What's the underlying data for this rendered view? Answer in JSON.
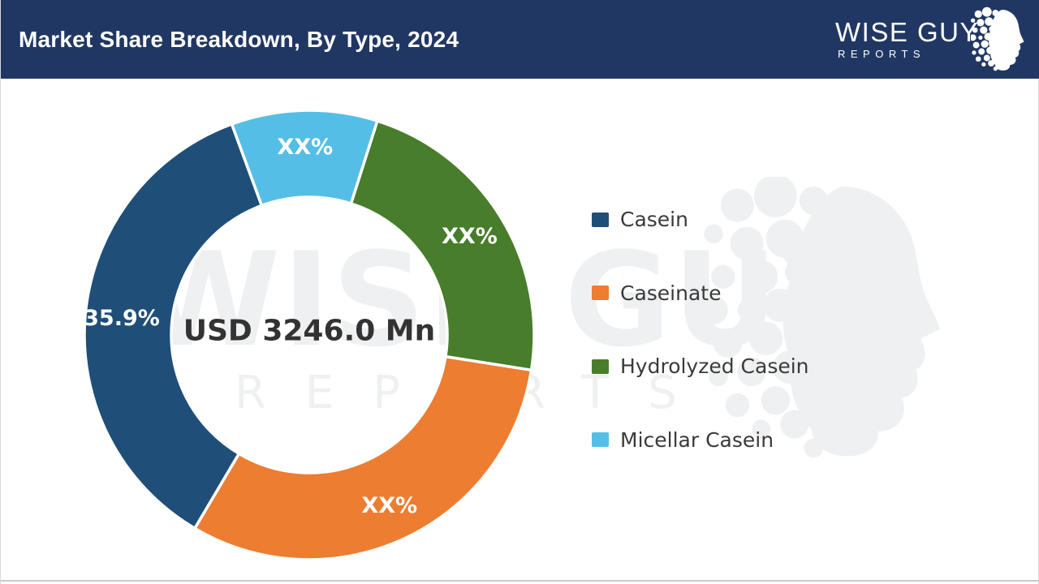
{
  "header": {
    "title": "Market Share Breakdown, By Type, 2024",
    "bg_color": "#213763",
    "logo": {
      "line1": "WISE GUY",
      "line2": "REPORTS"
    }
  },
  "watermark": {
    "line1": "WISE GUY",
    "line2": "REPORTS"
  },
  "chart_data": {
    "type": "pie",
    "variant": "donut",
    "title": "Market Share Breakdown, By Type, 2024",
    "center_label": "USD 3246.0 Mn",
    "legend_position": "right",
    "series": [
      {
        "name": "Casein",
        "display_label": "35.9%",
        "approx_pct": 35.9,
        "color": "#1F4E79"
      },
      {
        "name": "Caseinate",
        "display_label": "XX%",
        "approx_pct": 31.0,
        "color": "#ED7D31"
      },
      {
        "name": "Hydrolyzed Casein",
        "display_label": "XX%",
        "approx_pct": 22.6,
        "color": "#487D2B"
      },
      {
        "name": "Micellar Casein",
        "display_label": "XX%",
        "approx_pct": 10.5,
        "color": "#55BEE6"
      }
    ],
    "layout": {
      "start_angle_deg": 210.6,
      "draw_order": [
        0,
        3,
        2,
        1
      ],
      "donut_hole_ratio": 0.614,
      "label_color": "#ffffff"
    }
  }
}
